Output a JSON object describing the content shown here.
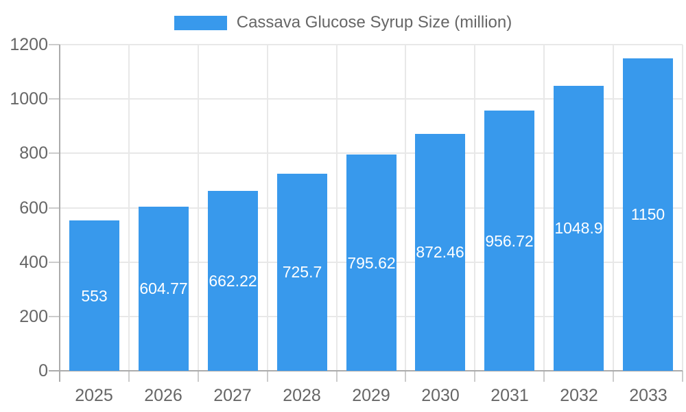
{
  "legend": {
    "label": "Cassava Glucose Syrup Size (million)"
  },
  "chart_data": {
    "type": "bar",
    "title": "Cassava Glucose Syrup Size (million)",
    "categories": [
      "2025",
      "2026",
      "2027",
      "2028",
      "2029",
      "2030",
      "2031",
      "2032",
      "2033"
    ],
    "values": [
      553,
      604.77,
      662.22,
      725.7,
      795.62,
      872.46,
      956.72,
      1048.9,
      1150
    ],
    "value_labels": [
      "553",
      "604.77",
      "662.22",
      "725.7",
      "795.62",
      "872.46",
      "956.72",
      "1048.9",
      "1150"
    ],
    "series_name": "Cassava Glucose Syrup Size (million)",
    "xlabel": "",
    "ylabel": "",
    "ylim": [
      0,
      1200
    ],
    "yticks": [
      0,
      200,
      400,
      600,
      800,
      1000,
      1200
    ],
    "grid": true,
    "legend_position": "top",
    "value_label_position": "center-of-bar",
    "colors": {
      "bar": "#3899EC",
      "grid": "#E8E8E8",
      "tick": "#CCCCCC",
      "axis": "#ABABAB",
      "axis_text": "#666666",
      "value_text": "#FFFFFF",
      "background": "#FFFFFF"
    }
  }
}
